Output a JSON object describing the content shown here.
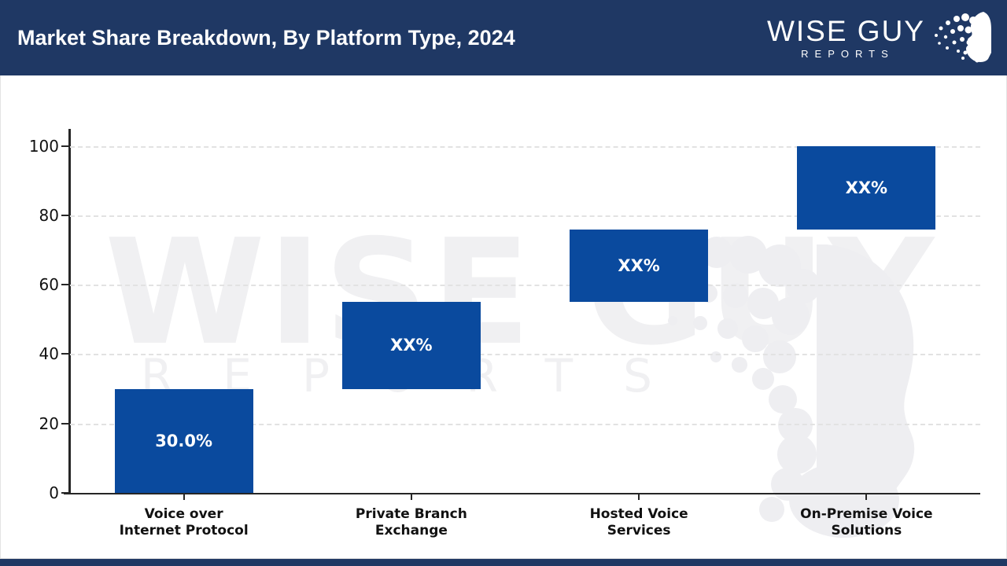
{
  "header": {
    "title": "Market Share Breakdown, By Platform Type, 2024",
    "logo": {
      "line1": "WISE GUY",
      "line2": "REPORTS"
    }
  },
  "watermark": {
    "line1": "WISE GUY",
    "line2": "REPORTS"
  },
  "colors": {
    "header_bg": "#1f3864",
    "bar": "#0a4a9e",
    "watermark": "#f0f0f2",
    "axis": "#262626",
    "gridline": "#e2e2e2"
  },
  "chart_data": {
    "type": "bar",
    "variant": "waterfall",
    "title": "Market Share Breakdown, By Platform Type, 2024",
    "categories": [
      "Voice over\nInternet Protocol",
      "Private Branch\nExchange",
      "Hosted Voice\nServices",
      "On-Premise Voice\nSolutions"
    ],
    "bars": [
      {
        "category": "Voice over\nInternet Protocol",
        "start": 0,
        "end": 30,
        "value": 30,
        "label": "30.0%"
      },
      {
        "category": "Private Branch\nExchange",
        "start": 30,
        "end": 55,
        "value": 25,
        "label": "XX%"
      },
      {
        "category": "Hosted Voice\nServices",
        "start": 55,
        "end": 76,
        "value": 21,
        "label": "XX%"
      },
      {
        "category": "On-Premise Voice\nSolutions",
        "start": 76,
        "end": 100,
        "value": 24,
        "label": "XX%"
      }
    ],
    "yticks": [
      0,
      20,
      40,
      60,
      80,
      100
    ],
    "ylim": [
      0,
      104
    ],
    "xlabel": "",
    "ylabel": "",
    "grid": "horizontal-dashed",
    "legend": "none",
    "bar_color": "#0a4a9e"
  }
}
